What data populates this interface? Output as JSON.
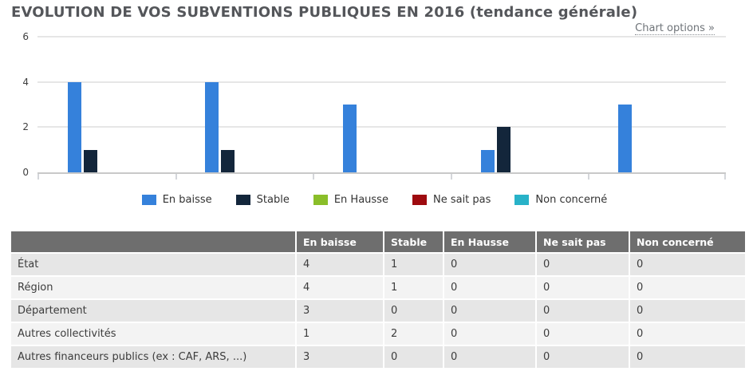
{
  "header": {
    "chart_options_label": "Chart options »"
  },
  "chart_data": {
    "type": "bar",
    "title": "EVOLUTION DE VOS SUBVENTIONS PUBLIQUES EN 2016 (tendance générale)",
    "categories": [
      "État",
      "Région",
      "Département",
      "Autres collectivités",
      "Autres financeurs publics (ex : CAF, ARS, ...)"
    ],
    "series": [
      {
        "name": "En baisse",
        "color": "#3581db",
        "values": [
          4,
          4,
          3,
          1,
          3
        ]
      },
      {
        "name": "Stable",
        "color": "#13263b",
        "values": [
          1,
          1,
          0,
          2,
          0
        ]
      },
      {
        "name": "En Hausse",
        "color": "#8abe29",
        "values": [
          0,
          0,
          0,
          0,
          0
        ]
      },
      {
        "name": "Ne sait pas",
        "color": "#9e0b0f",
        "values": [
          0,
          0,
          0,
          0,
          0
        ]
      },
      {
        "name": "Non concerné",
        "color": "#28b2c8",
        "values": [
          0,
          0,
          0,
          0,
          0
        ]
      }
    ],
    "xlabel": "",
    "ylabel": "",
    "ylim": [
      0,
      6
    ],
    "yticks": [
      0,
      2,
      4,
      6
    ],
    "grid": true,
    "x_tick_labels_visible": false,
    "legend_position": "bottom"
  },
  "table": {
    "columns": [
      "",
      "En baisse",
      "Stable",
      "En Hausse",
      "Ne sait pas",
      "Non concerné"
    ],
    "rows": [
      {
        "label": "État",
        "values": [
          4,
          1,
          0,
          0,
          0
        ]
      },
      {
        "label": "Région",
        "values": [
          4,
          1,
          0,
          0,
          0
        ]
      },
      {
        "label": "Département",
        "values": [
          3,
          0,
          0,
          0,
          0
        ]
      },
      {
        "label": "Autres collectivités",
        "values": [
          1,
          2,
          0,
          0,
          0
        ]
      },
      {
        "label": "Autres financeurs publics (ex : CAF, ARS, ...)",
        "values": [
          3,
          0,
          0,
          0,
          0
        ]
      }
    ]
  }
}
